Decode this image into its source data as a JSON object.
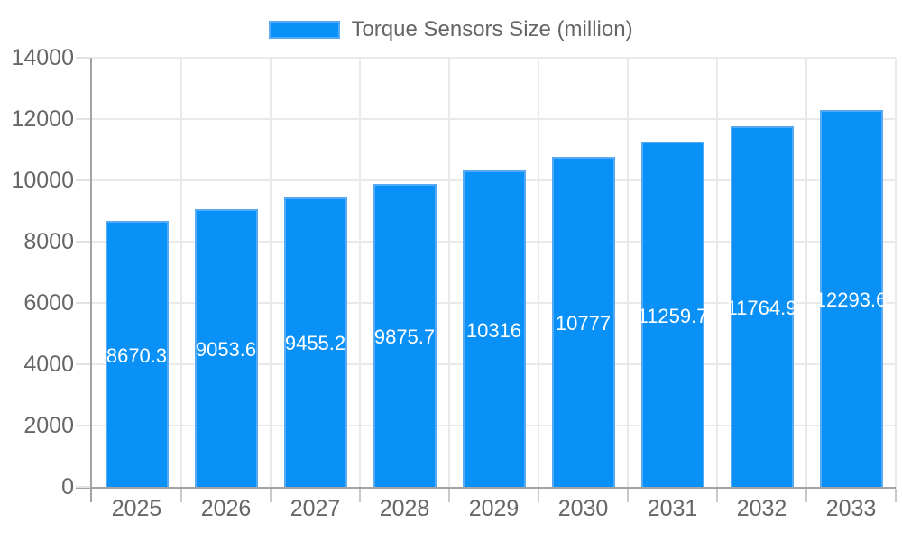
{
  "legend": {
    "label": "Torque Sensors Size (million)",
    "position": "top"
  },
  "colors": {
    "bar_fill": "#0991f7",
    "bar_border": "#55a9f5",
    "grid": "#e9e9e9",
    "axis": "#a3a3a3",
    "y_tick": "#e2e2e2",
    "x_tick": "#c9c9c9",
    "tick_text": "#666666",
    "legend_text": "#666666",
    "bar_label_text": "#ffffff"
  },
  "chart_data": {
    "type": "bar",
    "title": "",
    "categories": [
      "2025",
      "2026",
      "2027",
      "2028",
      "2029",
      "2030",
      "2031",
      "2032",
      "2033"
    ],
    "series": [
      {
        "name": "Torque Sensors Size (million)",
        "values": [
          8670.3,
          9053.6,
          9455.2,
          9875.7,
          10316,
          10777,
          11259.7,
          11764.9,
          12293.6
        ],
        "display_labels": [
          "8670.3",
          "9053.6",
          "9455.2",
          "9875.7",
          "10316",
          "10777",
          "11259.7",
          "11764.9",
          "12293.6"
        ]
      }
    ],
    "xlabel": "",
    "ylabel": "",
    "ylim": [
      0,
      14000
    ],
    "yticks": [
      0,
      2000,
      4000,
      6000,
      8000,
      10000,
      12000,
      14000
    ],
    "grid": true,
    "value_labels_position": "center-inside",
    "legend_position": "top"
  }
}
